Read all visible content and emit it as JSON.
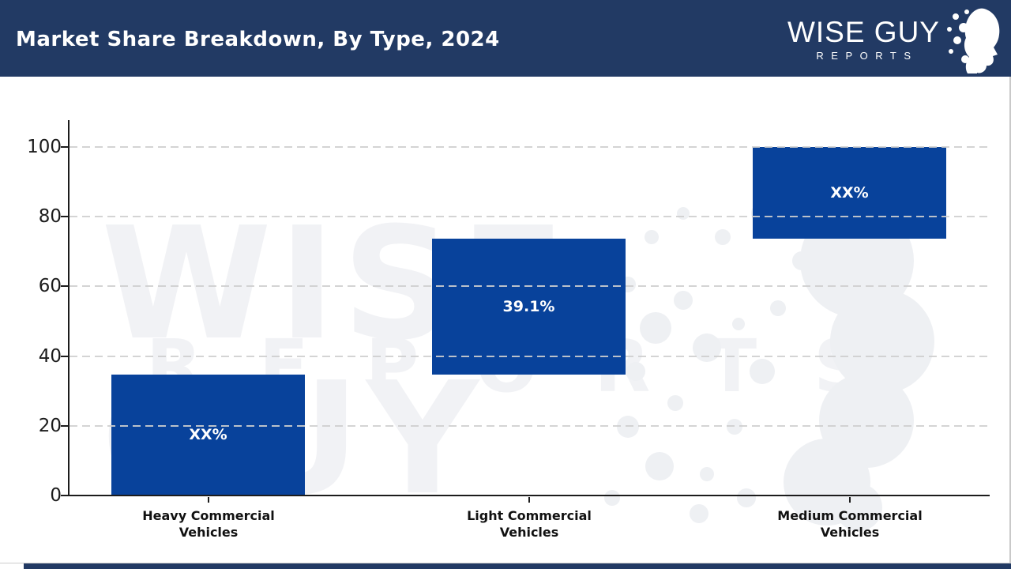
{
  "header": {
    "title": "Market Share Breakdown, By Type, 2024",
    "bg_color": "#223a64",
    "text_color": "#ffffff",
    "logo": {
      "brand_line1": "WISE GUY",
      "brand_line2": "REPORTS"
    }
  },
  "watermark": {
    "line1": "WISE GUY",
    "line2": "R E P O R T S"
  },
  "chart_data": {
    "type": "bar",
    "variant": "floating segment bars (market-share waterfall, segments sum to 100%)",
    "title": "Market Share Breakdown, By Type, 2024",
    "categories": [
      "Heavy Commercial\nVehicles",
      "Light Commercial\nVehicles",
      "Medium Commercial\nVehicles"
    ],
    "segments": [
      {
        "category": "Heavy Commercial Vehicles",
        "start": 0,
        "end": 34.7,
        "label": "XX%"
      },
      {
        "category": "Light Commercial Vehicles",
        "start": 34.7,
        "end": 73.8,
        "label": "39.1%"
      },
      {
        "category": "Medium Commercial Vehicles",
        "start": 73.8,
        "end": 100,
        "label": "XX%"
      }
    ],
    "yticks": [
      0,
      20,
      40,
      60,
      80,
      100
    ],
    "ylim": [
      0,
      106
    ],
    "xlabel": "",
    "ylabel": "",
    "legend": "none",
    "grid": "horizontal dashed",
    "bar_color": "#08429b",
    "bar_label_color": "#ffffff",
    "axis_color": "#1c1c1c",
    "tick_label_color": "#1c1c1c",
    "gridline_color": "#cfcfcf"
  },
  "footer": {
    "bar_color": "#223a64"
  }
}
